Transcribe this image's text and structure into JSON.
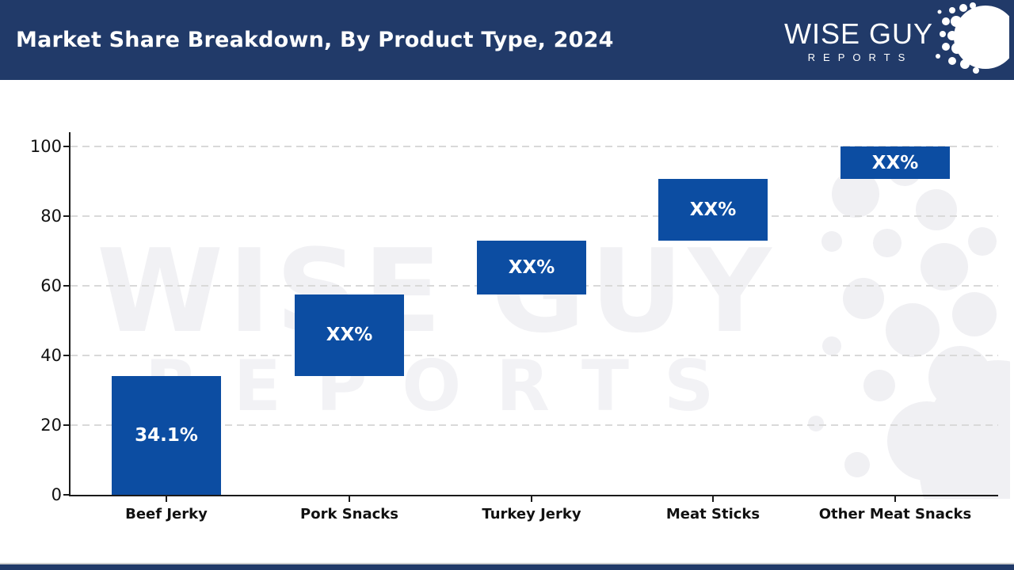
{
  "header": {
    "title": "Market Share Breakdown, By Product Type, 2024",
    "logo": {
      "wordmark": "WISE GUY",
      "subtext": "REPORTS"
    }
  },
  "watermark": {
    "line1": "WISE GUY",
    "line2": "REPORTS"
  },
  "colors": {
    "header_bg": "#213a69",
    "footer_bg": "#213a69",
    "bar_fill": "#0c4da2",
    "bar_label_color": "#ffffff",
    "grid_color": "#d9d9d9",
    "axis_color": "#1a1a1a"
  },
  "chart_data": {
    "type": "bar",
    "subtype": "waterfall",
    "title": "Market Share Breakdown, By Product Type, 2024",
    "xlabel": "",
    "ylabel": "",
    "ylim": [
      0,
      104
    ],
    "yticks": [
      0,
      20,
      40,
      60,
      80,
      100
    ],
    "grid": "horizontal-dashed",
    "legend": "none",
    "categories": [
      "Beef Jerky",
      "Pork Snacks",
      "Turkey Jerky",
      "Meat Sticks",
      "Other Meat Snacks"
    ],
    "segments": [
      {
        "category": "Beef Jerky",
        "start": 0,
        "end": 34.1,
        "label": "34.1%"
      },
      {
        "category": "Pork Snacks",
        "start": 34.1,
        "end": 57.5,
        "label": "XX%"
      },
      {
        "category": "Turkey Jerky",
        "start": 57.5,
        "end": 73.0,
        "label": "XX%"
      },
      {
        "category": "Meat Sticks",
        "start": 73.0,
        "end": 90.6,
        "label": "XX%"
      },
      {
        "category": "Other Meat Snacks",
        "start": 90.6,
        "end": 100.0,
        "label": "XX%"
      }
    ]
  }
}
